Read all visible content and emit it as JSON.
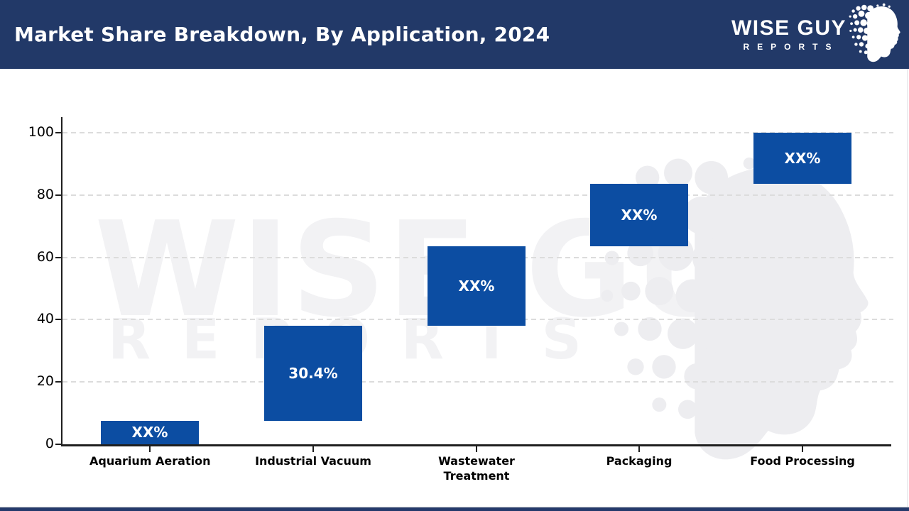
{
  "header": {
    "title": "Market Share Breakdown, By Application, 2024",
    "logo": {
      "line1": "WISE GUY",
      "line2": "REPORTS"
    }
  },
  "watermark": {
    "line1": "WISE GUY",
    "line2": "REPORTS"
  },
  "colors": {
    "header_bg": "#223968",
    "bar": "#0C4DA2",
    "grid": "#dcdcdc",
    "axis": "#1f1f1f",
    "watermark_text": "#f2f2f4"
  },
  "chart_data": {
    "type": "bar",
    "subtype": "waterfall",
    "title": "Market Share Breakdown, By Application, 2024",
    "unit": "%",
    "categories": [
      "Aquarium Aeration",
      "Industrial Vacuum",
      "Wastewater Treatment",
      "Packaging",
      "Food Processing"
    ],
    "segments": [
      {
        "category": "Aquarium Aeration",
        "start": 0,
        "end": 7.6,
        "label": "XX%"
      },
      {
        "category": "Industrial Vacuum",
        "start": 7.6,
        "end": 38.0,
        "label": "30.4%",
        "value": 30.4
      },
      {
        "category": "Wastewater Treatment",
        "start": 38.0,
        "end": 63.5,
        "label": "XX%"
      },
      {
        "category": "Packaging",
        "start": 63.5,
        "end": 83.5,
        "label": "XX%"
      },
      {
        "category": "Food Processing",
        "start": 83.5,
        "end": 100,
        "label": "XX%"
      }
    ],
    "y_ticks": [
      0,
      20,
      40,
      60,
      80,
      100
    ],
    "ylim": [
      0,
      105
    ],
    "bar_color": "#0C4DA2",
    "grid": "dashed-horizontal",
    "legend": "none",
    "xlabel": "",
    "ylabel": ""
  }
}
